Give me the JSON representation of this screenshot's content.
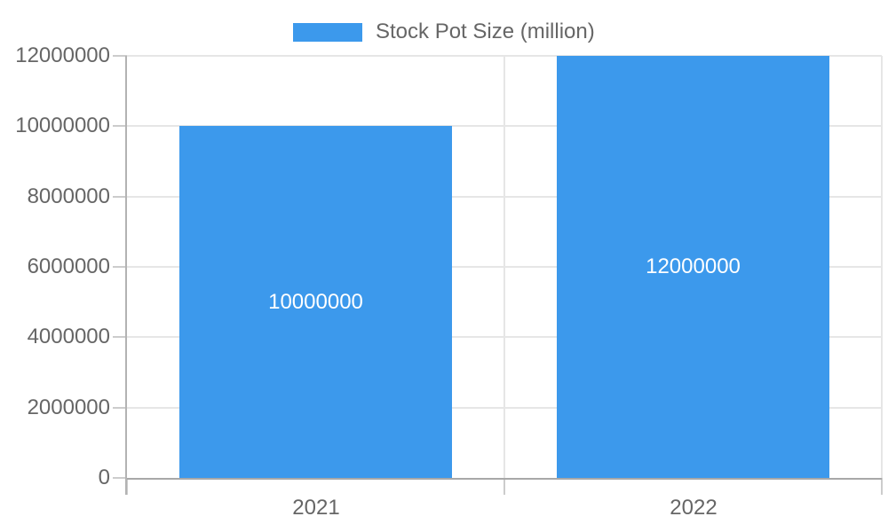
{
  "chart_data": {
    "type": "bar",
    "title": "",
    "categories": [
      "2021",
      "2022"
    ],
    "series": [
      {
        "name": "Stock Pot Size (million)",
        "values": [
          10000000,
          12000000
        ],
        "color": "#3C99EC"
      }
    ],
    "data_labels": [
      "10000000",
      "12000000"
    ],
    "y_ticks": [
      0,
      2000000,
      4000000,
      6000000,
      8000000,
      10000000,
      12000000
    ],
    "y_tick_labels": [
      "0",
      "2000000",
      "4000000",
      "6000000",
      "8000000",
      "10000000",
      "12000000"
    ],
    "ylim": [
      0,
      12000000
    ],
    "xlabel": "",
    "ylabel": "",
    "grid": true,
    "legend": {
      "position": "top",
      "entries": [
        "Stock Pot Size (million)"
      ]
    },
    "colors": {
      "bar": "#3C99EC",
      "bar_label": "#FFFFFF",
      "axis_text": "#666666",
      "grid": "#E6E6E6",
      "tick": "#CCCCCC",
      "y_axis_line": "#B3B3B3",
      "x_axis_line": "#A8A8A8",
      "background": "#FFFFFF"
    }
  }
}
